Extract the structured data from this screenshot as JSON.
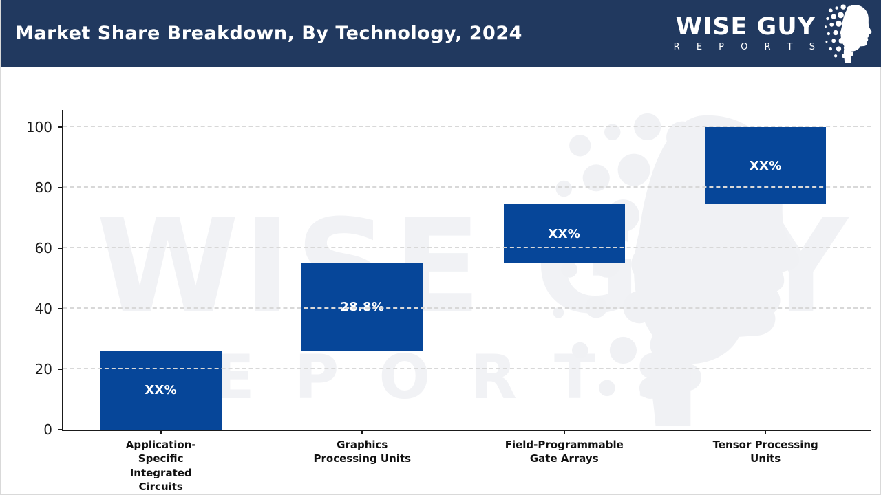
{
  "header": {
    "title": "Market Share Breakdown, By Technology, 2024",
    "bg_color": "#21395f",
    "logo": {
      "line1": "WISE GUY",
      "line2": "R E P O R T S"
    }
  },
  "watermark": {
    "line1": "WISE GUY",
    "line2": "REPORTS"
  },
  "chart_data": {
    "type": "bar",
    "subtype": "floating-waterfall",
    "title": "Market Share Breakdown, By Technology, 2024",
    "xlabel": "",
    "ylabel": "",
    "ylim": [
      0,
      105.7
    ],
    "yticks": [
      0,
      20,
      40,
      60,
      80,
      100
    ],
    "grid": "dashed-horizontal",
    "legend": "none",
    "bar_color": "#064699",
    "label_color": "#ffffff",
    "categories": [
      "Application-Specific Integrated Circuits",
      "Graphics Processing Units",
      "Field-Programmable Gate Arrays",
      "Tensor Processing Units"
    ],
    "category_label_lines": [
      [
        "Application-",
        "Specific",
        "Integrated",
        "Circuits"
      ],
      [
        "Graphics",
        "Processing Units"
      ],
      [
        "Field-Programmable",
        "Gate Arrays"
      ],
      [
        "Tensor Processing",
        "Units"
      ]
    ],
    "bars": [
      {
        "category": "Application-Specific Integrated Circuits",
        "start": 0,
        "end": 26.2,
        "height": 26.2,
        "label": "XX%"
      },
      {
        "category": "Graphics Processing Units",
        "start": 26.2,
        "end": 55.0,
        "height": 28.8,
        "label": "28.8%"
      },
      {
        "category": "Field-Programmable Gate Arrays",
        "start": 55.0,
        "end": 74.5,
        "height": 19.5,
        "label": "XX%"
      },
      {
        "category": "Tensor Processing Units",
        "start": 74.5,
        "end": 100.0,
        "height": 25.5,
        "label": "XX%"
      }
    ]
  }
}
